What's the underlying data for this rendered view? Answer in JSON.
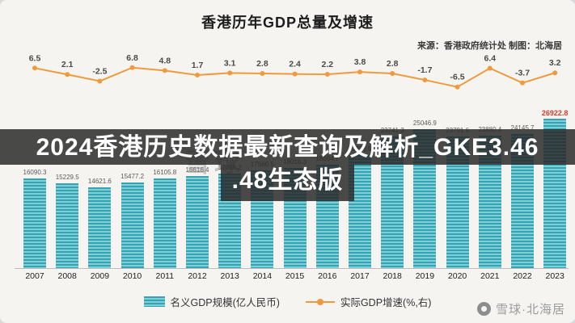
{
  "header": {
    "title": "香港历年GDP总量及增速",
    "source": "来源：香港政府统计处  制图：北海居"
  },
  "overlay": {
    "line1": "2024香港历史数据最新查询及解析_GKE3.46",
    "line2": ".48生态版"
  },
  "legend": {
    "bar_label": "名义GDP规模(亿人民币)",
    "line_label": "实际GDP增速(%,右)"
  },
  "watermark": {
    "bottom_right": "雪球·北海居",
    "ghost": "雪球"
  },
  "colors": {
    "bar": "#35a3b1",
    "bar_stripe": "#7fcfd8",
    "line": "#ef9a3d",
    "highlight_label": "#d93a2b"
  },
  "chart_data": {
    "type": "bar",
    "subtype": "bar+line combo",
    "title": "香港历年GDP总量及增速",
    "source": "来源：香港政府统计处  制图：北海居",
    "categories": [
      "2007",
      "2008",
      "2009",
      "2010",
      "2011",
      "2012",
      "2013",
      "2014",
      "2015",
      "2016",
      "2017",
      "2018",
      "2019",
      "2020",
      "2021",
      "2022",
      "2023"
    ],
    "series": [
      {
        "name": "名义GDP规模(亿人民币)",
        "type": "bar",
        "unit": "亿人民币",
        "values": [
          16090.3,
          15229.5,
          14621.6,
          15477.2,
          16105.8,
          16616.4,
          17086.2,
          17560.5,
          18016.3,
          18684.7,
          20328.9,
          23741.3,
          25046.9,
          23791.6,
          23880.4,
          24145.7,
          26922.8
        ]
      },
      {
        "name": "实际GDP增速(%,右)",
        "type": "line",
        "unit": "%",
        "axis": "right",
        "values": [
          6.5,
          2.1,
          -2.5,
          6.8,
          4.8,
          1.7,
          3.1,
          2.8,
          2.4,
          2.2,
          3.8,
          2.8,
          -1.7,
          -6.5,
          6.4,
          -3.7,
          3.2
        ]
      }
    ],
    "ylim_left": [
      0,
      28000
    ],
    "ylim_right": [
      -8,
      8
    ],
    "grid": false,
    "legend_position": "bottom",
    "bar_value_labels": true,
    "highlight_last_bar_label": true
  }
}
